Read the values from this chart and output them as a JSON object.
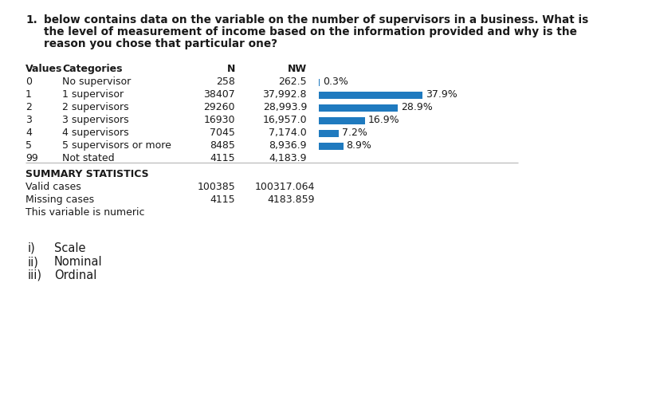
{
  "title_number": "1.",
  "title_lines": [
    "below contains data on the variable on the number of supervisors in a business. What is",
    "the level of measurement of income based on the information provided and why is the",
    "reason you chose that particular one?"
  ],
  "table_headers": [
    "Values",
    "Categories",
    "N",
    "NW"
  ],
  "table_rows": [
    {
      "value": "0",
      "category": "No supervisor",
      "N": "258",
      "NW": "262.5",
      "bar_pct": 0.3,
      "pct_label": "0.3%"
    },
    {
      "value": "1",
      "category": "1 supervisor",
      "N": "38407",
      "NW": "37,992.8",
      "bar_pct": 37.9,
      "pct_label": "37.9%"
    },
    {
      "value": "2",
      "category": "2 supervisors",
      "N": "29260",
      "NW": "28,993.9",
      "bar_pct": 28.9,
      "pct_label": "28.9%"
    },
    {
      "value": "3",
      "category": "3 supervisors",
      "N": "16930",
      "NW": "16,957.0",
      "bar_pct": 16.9,
      "pct_label": "16.9%"
    },
    {
      "value": "4",
      "category": "4 supervisors",
      "N": "7045",
      "NW": "7,174.0",
      "bar_pct": 7.2,
      "pct_label": "7.2%"
    },
    {
      "value": "5",
      "category": "5 supervisors or more",
      "N": "8485",
      "NW": "8,936.9",
      "bar_pct": 8.9,
      "pct_label": "8.9%"
    },
    {
      "value": "99",
      "category": "Not stated",
      "N": "4115",
      "NW": "4,183.9",
      "bar_pct": null,
      "pct_label": null
    }
  ],
  "summary_title": "SUMMARY STATISTICS",
  "summary_rows": [
    {
      "label": "Valid cases",
      "N": "100385",
      "NW": "100317.064"
    },
    {
      "label": "Missing cases",
      "N": "4115",
      "NW": "4183.859"
    },
    {
      "label": "This variable is numeric",
      "N": null,
      "NW": null
    }
  ],
  "options": [
    [
      "i)",
      "Scale"
    ],
    [
      "ii)",
      "Nominal"
    ],
    [
      "iii)",
      "Ordinal"
    ]
  ],
  "bar_color": "#1f7abf",
  "bar_max_pct": 37.9,
  "background_color": "#ffffff",
  "text_color": "#1a1a1a",
  "font_size_title": 9.8,
  "font_size_table": 9.0,
  "font_size_summary_title": 9.0,
  "font_size_summary": 9.0,
  "font_size_options": 10.5
}
